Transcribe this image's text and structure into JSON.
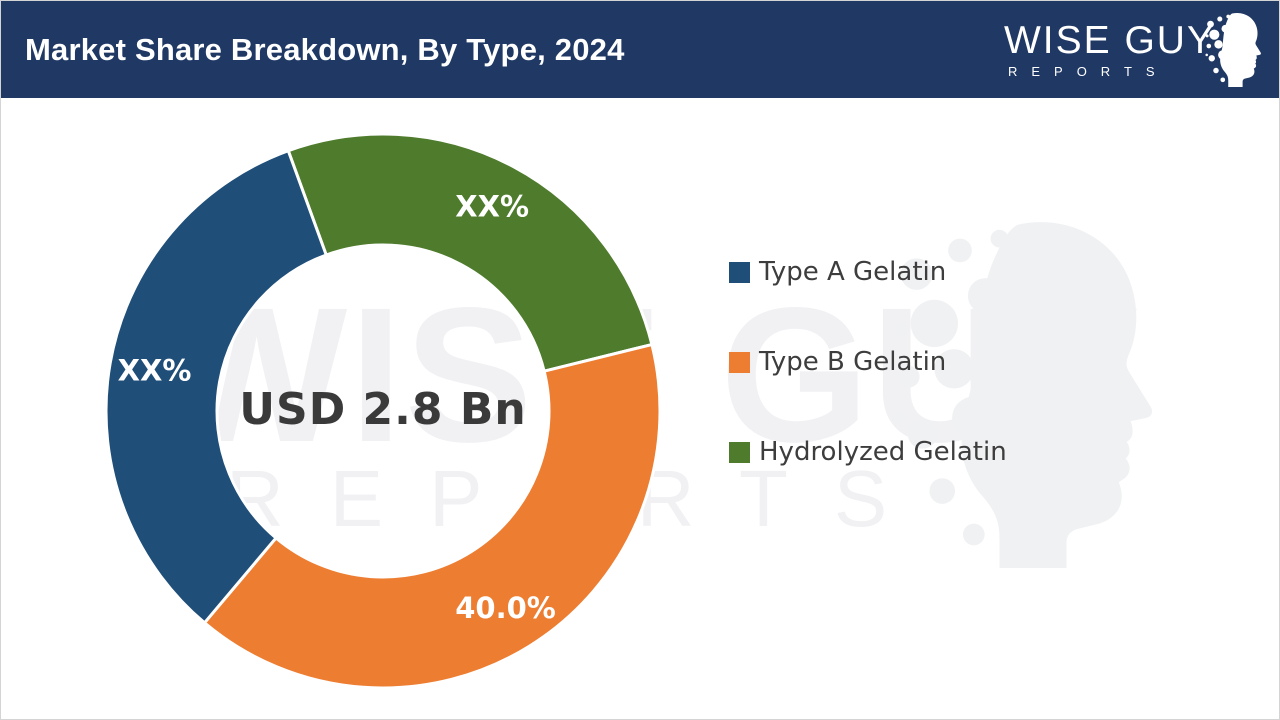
{
  "header": {
    "title": "Market Share Breakdown, By Type, 2024",
    "logo": {
      "line1": "WISE GUY",
      "line2": "REPORTS"
    }
  },
  "watermark": {
    "line1": "WISE GUY",
    "line2": "REPORTS"
  },
  "chart_data": {
    "type": "pie",
    "subtype": "donut",
    "title": "Market Share Breakdown, By Type, 2024",
    "center_label": "USD 2.8 Bn",
    "start_angle_deg": -20,
    "direction": "clockwise",
    "hole_radius_ratio": 0.6,
    "legend_position": "right",
    "segments": [
      {
        "name": "Hydrolyzed Gelatin",
        "value_pct": 26.7,
        "display_label": "XX%",
        "color": "#4e7b2c"
      },
      {
        "name": "Type B Gelatin",
        "value_pct": 40.0,
        "display_label": "40.0%",
        "color": "#ed7d31"
      },
      {
        "name": "Type A Gelatin",
        "value_pct": 33.3,
        "display_label": "XX%",
        "color": "#1f4e79"
      }
    ]
  },
  "legend": {
    "items": [
      {
        "label": "Type A Gelatin",
        "color": "#1f4e79"
      },
      {
        "label": "Type B Gelatin",
        "color": "#ed7d31"
      },
      {
        "label": "Hydrolyzed Gelatin",
        "color": "#4e7b2c"
      }
    ]
  },
  "colors": {
    "header_bg": "#1f3864",
    "text_dark": "#3a3a3a",
    "watermark": "#f1f1f4",
    "slice_label_text": "#ffffff"
  }
}
